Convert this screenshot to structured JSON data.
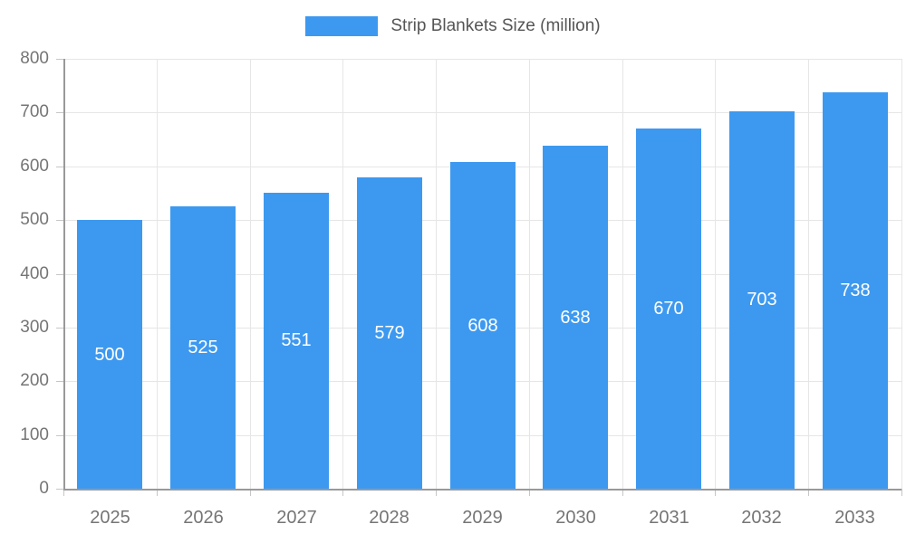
{
  "legend": {
    "label": "Strip Blankets Size (million)"
  },
  "chart_data": {
    "type": "bar",
    "title": "Strip Blankets Size (million)",
    "categories": [
      "2025",
      "2026",
      "2027",
      "2028",
      "2029",
      "2030",
      "2031",
      "2032",
      "2033"
    ],
    "values": [
      500,
      525,
      551,
      579,
      608,
      638,
      670,
      703,
      738
    ],
    "bar_labels": [
      "500",
      "525",
      "551",
      "579",
      "608",
      "638",
      "670",
      "703",
      "738"
    ],
    "xlabel": "",
    "ylabel": "",
    "ylim": [
      0,
      800
    ],
    "yticks": [
      0,
      100,
      200,
      300,
      400,
      500,
      600,
      700,
      800
    ],
    "grid": true,
    "legend_position": "top-center",
    "colors": {
      "bar": "#3d99f0",
      "grid": "#e6e6e6",
      "axis": "#999999",
      "tick_mark": "#c6c6c6",
      "tick_text": "#757575",
      "legend_text": "#555555",
      "bar_label": "#ffffff"
    }
  }
}
